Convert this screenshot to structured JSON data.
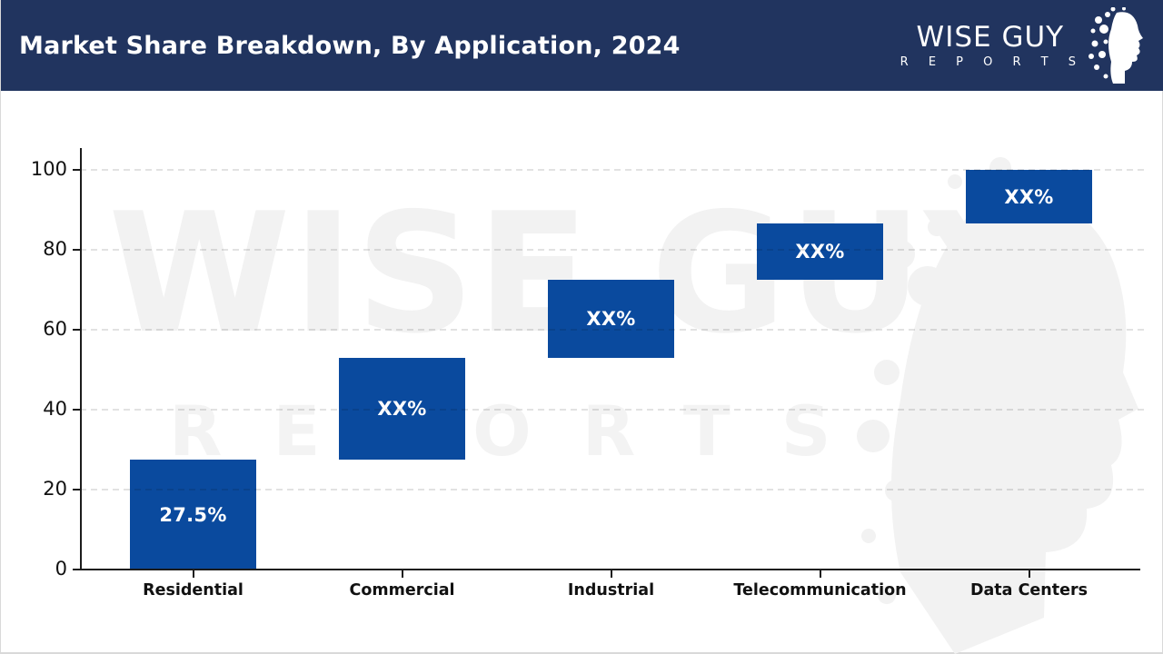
{
  "header": {
    "title": "Market Share Breakdown, By Application, 2024",
    "logo": {
      "line1": "WISE GUY",
      "line2": "R E P O R T S"
    }
  },
  "watermark": {
    "line1": "WISE GUY",
    "line2": "REPORTS"
  },
  "colors": {
    "header_bg": "#21345f",
    "bar": "#0a4a9e",
    "axis": "#1c1c1c",
    "grid_dash": "rgba(0,0,0,0.115)",
    "watermark": "#f2f2f2",
    "bar_label": "#ffffff"
  },
  "chart_data": {
    "type": "bar",
    "subtype": "waterfall",
    "title": "Market Share Breakdown, By Application, 2024",
    "categories": [
      "Residential",
      "Commercial",
      "Industrial",
      "Telecommunication",
      "Data Centers"
    ],
    "segments": [
      {
        "category": "Residential",
        "start": 0,
        "end": 27.5,
        "label": "27.5%"
      },
      {
        "category": "Commercial",
        "start": 27.5,
        "end": 53,
        "label": "XX%"
      },
      {
        "category": "Industrial",
        "start": 53,
        "end": 72.5,
        "label": "XX%"
      },
      {
        "category": "Telecommunication",
        "start": 72.5,
        "end": 86.5,
        "label": "XX%"
      },
      {
        "category": "Data Centers",
        "start": 86.5,
        "end": 100,
        "label": "XX%"
      }
    ],
    "yticks": [
      0,
      20,
      40,
      60,
      80,
      100
    ],
    "ylim": [
      0,
      105
    ],
    "xlabel": "",
    "ylabel": "",
    "grid": "dashed-horizontal",
    "legend": "none",
    "bar_color": "#0a4a9e"
  }
}
